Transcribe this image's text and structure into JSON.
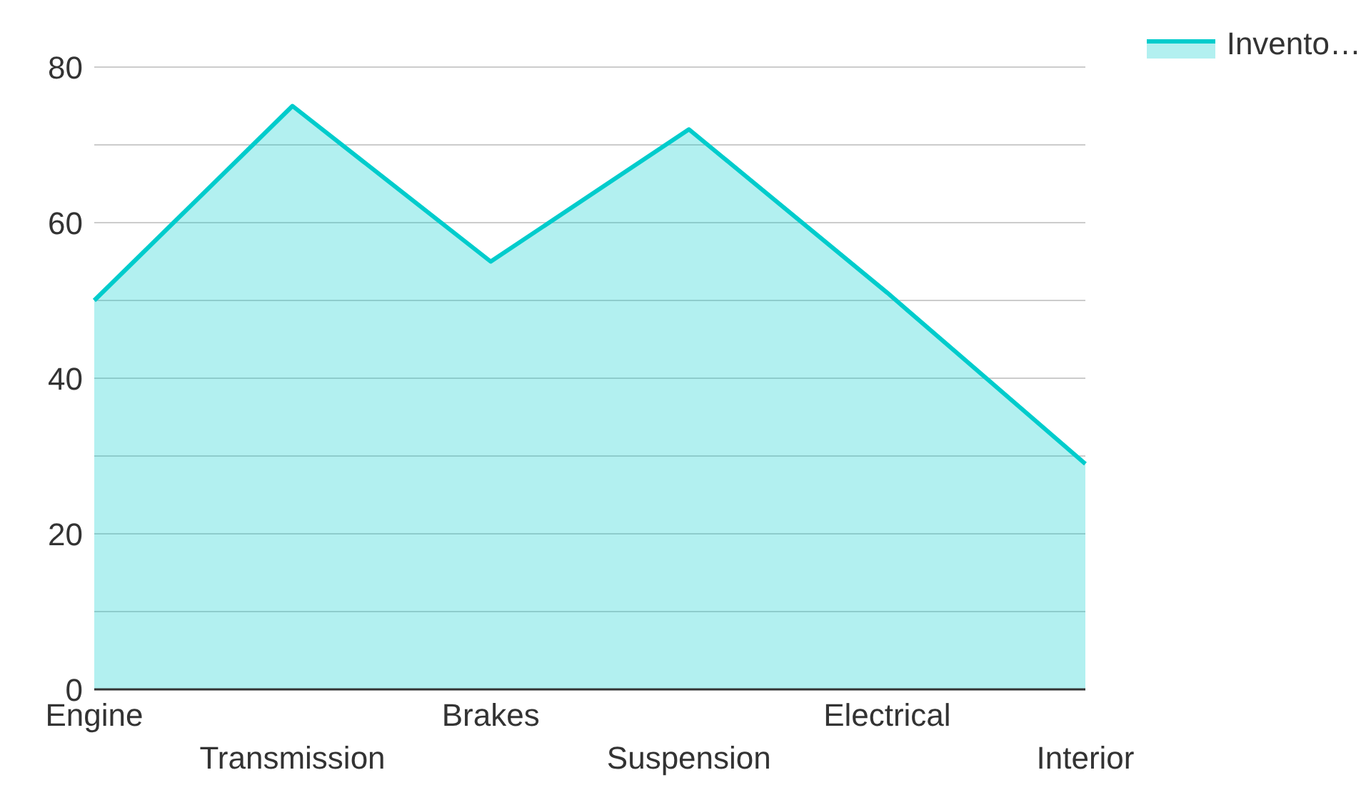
{
  "chart_data": {
    "type": "area",
    "categories": [
      "Engine",
      "Transmission",
      "Brakes",
      "Suspension",
      "Electrical",
      "Interior"
    ],
    "series": [
      {
        "name": "Invento…",
        "color": "#00cccc",
        "values": [
          50,
          75,
          55,
          72,
          51,
          29
        ]
      }
    ],
    "ylim": [
      0,
      80
    ],
    "yticks": [
      0,
      {
        "value": 10,
        "label": null
      },
      20,
      {
        "value": 30,
        "label": null
      },
      40,
      {
        "value": 50,
        "label": null
      },
      60,
      {
        "value": 70,
        "label": null
      },
      80
    ],
    "grid": "y",
    "legend": "top right"
  }
}
